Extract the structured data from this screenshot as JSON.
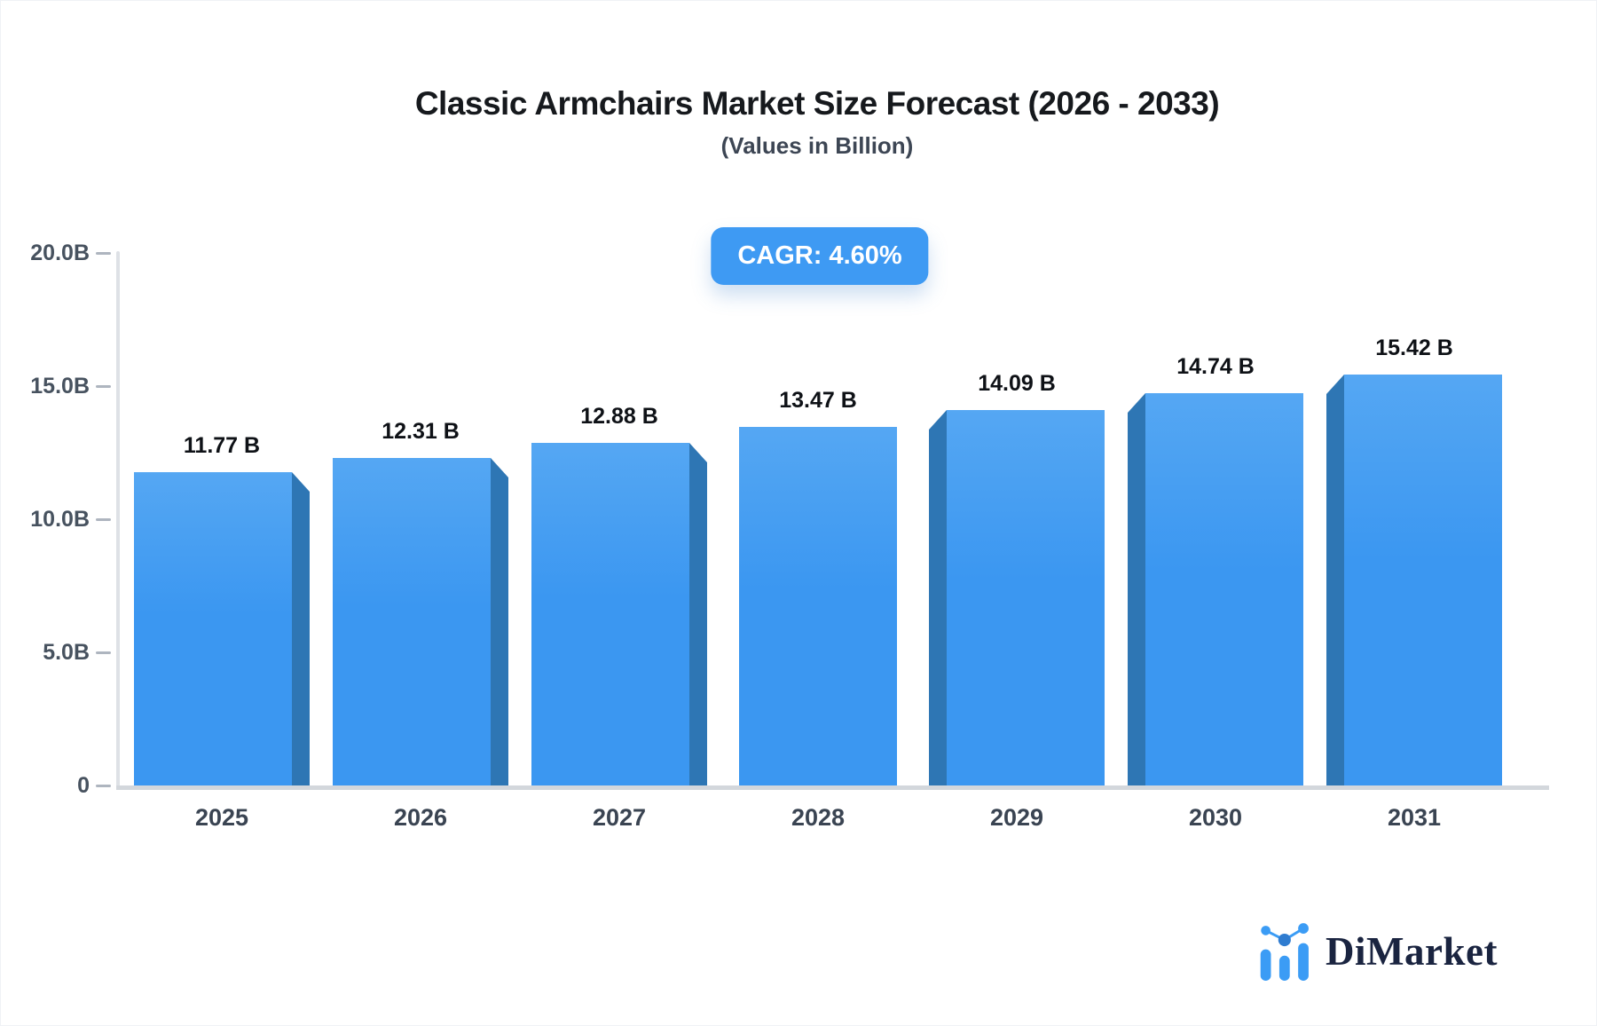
{
  "header": {
    "title": "Classic Armchairs Market Size Forecast (2026 - 2033)",
    "subtitle": "(Values in Billion)"
  },
  "cagr": {
    "label": "CAGR: 4.60%",
    "value": "4.60%"
  },
  "chart_data": {
    "type": "bar",
    "title": "Classic Armchairs Market Size Forecast (2026 - 2033)",
    "subtitle": "(Values in Billion)",
    "categories": [
      "2025",
      "2026",
      "2027",
      "2028",
      "2029",
      "2030",
      "2031"
    ],
    "values": [
      11.77,
      12.31,
      12.88,
      13.47,
      14.09,
      14.74,
      15.42
    ],
    "value_labels": [
      "11.77 B",
      "12.31 B",
      "12.88 B",
      "13.47 B",
      "14.09 B",
      "14.74 B",
      "15.42 B"
    ],
    "y_ticks": [
      {
        "label": "20.0B",
        "value": 20
      },
      {
        "label": "15.0B",
        "value": 15
      },
      {
        "label": "10.0B",
        "value": 10
      },
      {
        "label": "5.0B",
        "value": 5
      },
      {
        "label": "0",
        "value": 0
      }
    ],
    "ylim": [
      0,
      20
    ],
    "xlabel": "",
    "ylabel": "",
    "grid": false,
    "legend": false,
    "bar_style": "3d-bevel-toward-center",
    "colors": {
      "bar_face": "#3B97F1",
      "bar_face_top": "#55A7F3",
      "bar_side": "#2E76B4",
      "accent": "#3E9AF3",
      "axis_line": "#D5D9DE",
      "tick_text": "#47525F",
      "value_text": "#0E1116"
    }
  },
  "branding": {
    "name": "DiMarket",
    "icon": "bar-line-chart-icon",
    "icon_color": "#3B9CF5",
    "icon_dot_color": "#2F7CD0",
    "text_color": "#1A2440"
  }
}
